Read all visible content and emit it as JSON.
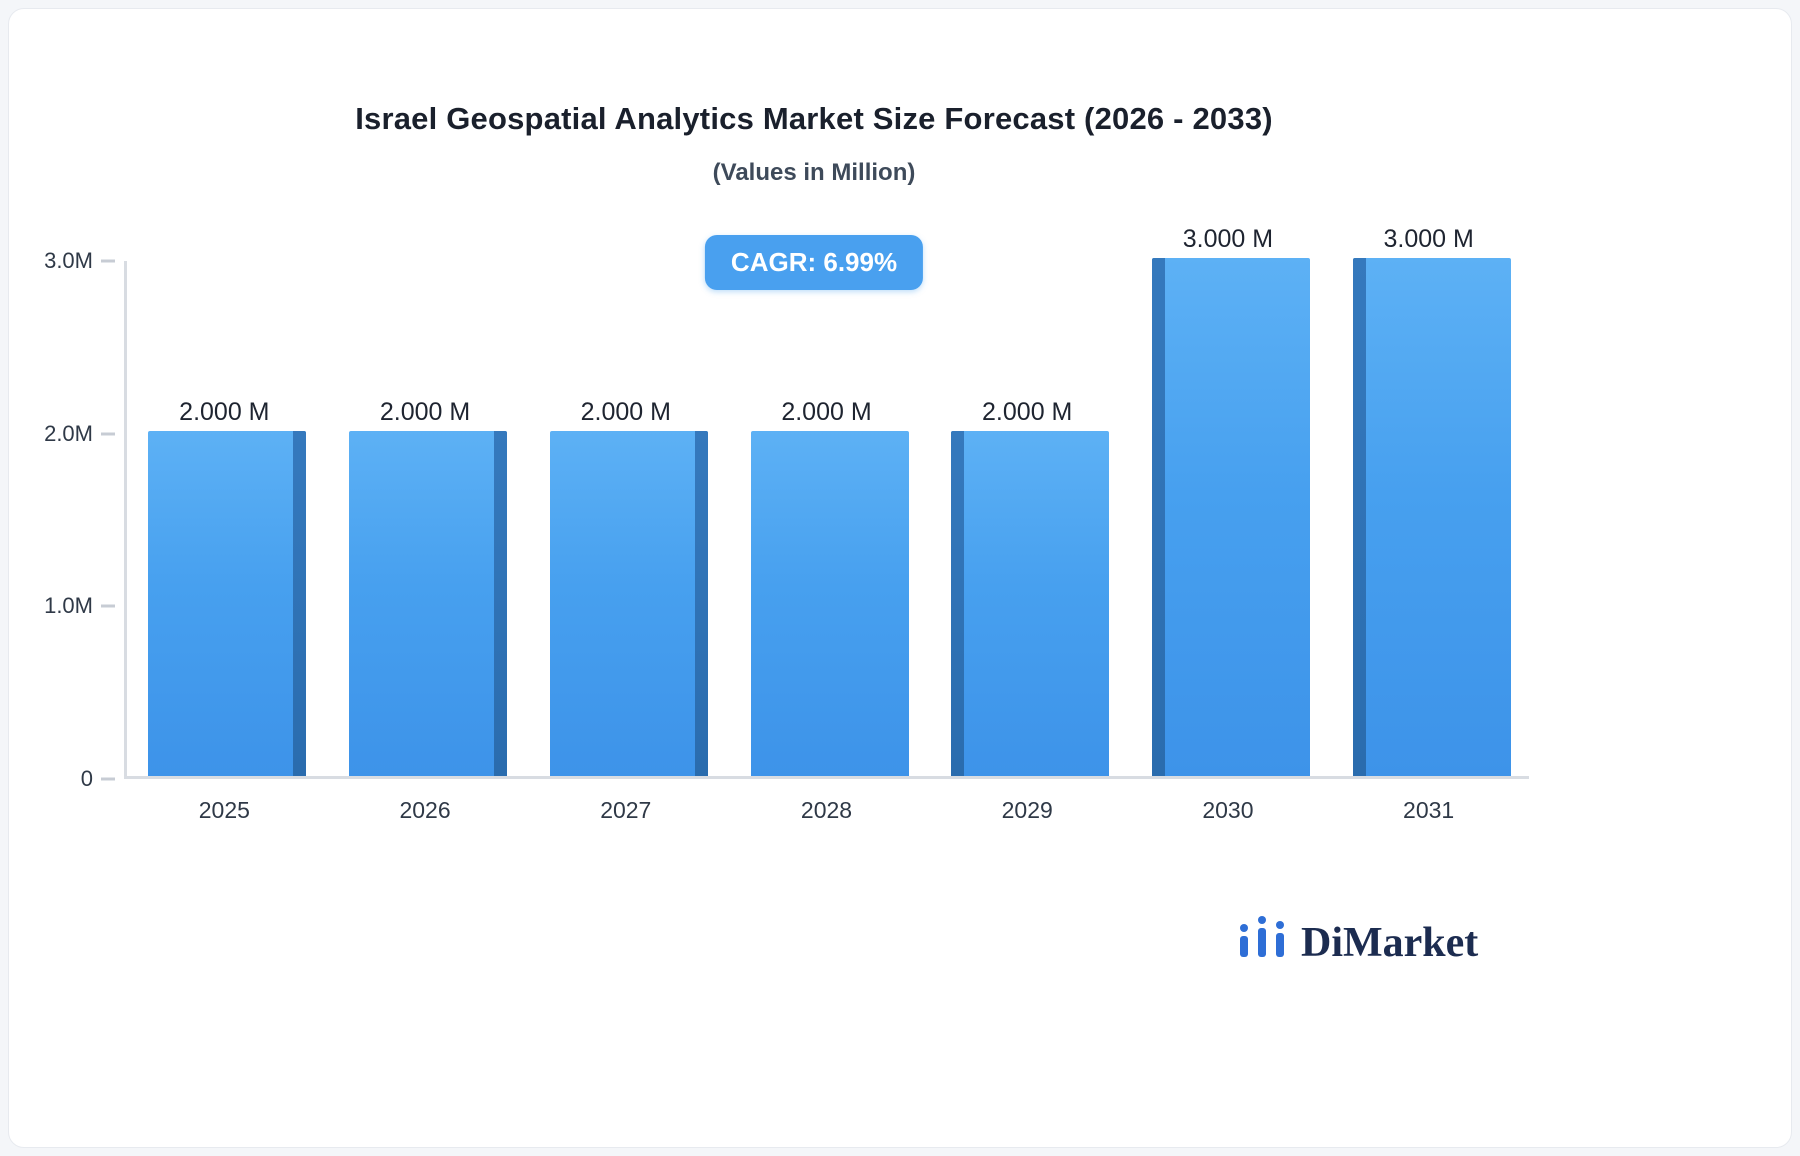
{
  "page": {
    "title": "Israel Geospatial Analytics Market Size Forecast (2026 - 2033)",
    "subtitle": "(Values in Million)",
    "cagr_badge": "CAGR: 6.99%"
  },
  "chart_data": {
    "type": "bar",
    "title": "Israel Geospatial Analytics Market Size Forecast (2026 - 2033)",
    "subtitle": "(Values in Million)",
    "categories": [
      "2025",
      "2026",
      "2027",
      "2028",
      "2029",
      "2030",
      "2031"
    ],
    "values": [
      2.0,
      2.0,
      2.0,
      2.0,
      2.0,
      3.0,
      3.0
    ],
    "value_labels": [
      "2.000 M",
      "2.000 M",
      "2.000 M",
      "2.000 M",
      "2.000 M",
      "3.000 M",
      "3.000 M"
    ],
    "ylabel": "",
    "xlabel": "",
    "ylim": [
      0,
      3.0
    ],
    "yticks": [
      {
        "value": 0,
        "label": "0"
      },
      {
        "value": 1.0,
        "label": "1.0M"
      },
      {
        "value": 2.0,
        "label": "2.0M"
      },
      {
        "value": 3.0,
        "label": "3.0M"
      }
    ],
    "annotation": "CAGR: 6.99%",
    "grid": false,
    "legend_position": "none",
    "bar_color_top": "#5db1f5",
    "bar_color_bottom": "#3d93e9",
    "bar_edge_color": "#2a6cae",
    "badge_color": "#49a0ef",
    "axis_color": "#d8dce2"
  },
  "logo": {
    "text": "DiMarket",
    "icon": "bar-chart-logo-icon",
    "text_color": "#1c2c50",
    "icon_color": "#2e6ed6"
  }
}
